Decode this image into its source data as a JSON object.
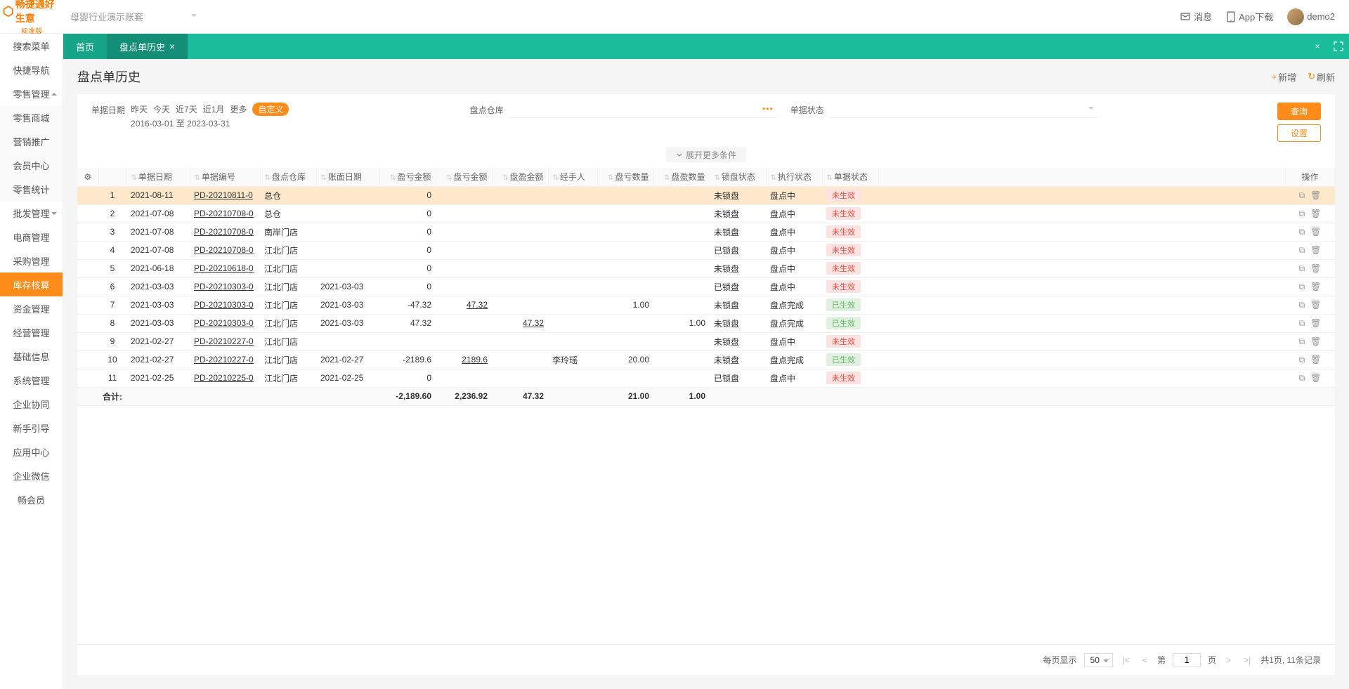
{
  "brand": {
    "name": "畅捷通好生意",
    "edition": "标准版"
  },
  "org": {
    "name": "母婴行业演示账套"
  },
  "topActions": {
    "msg": "消息",
    "download": "App下载",
    "user": "demo2"
  },
  "sidebar": {
    "search": "搜索菜单",
    "quick": "快捷导航",
    "groups": [
      {
        "label": "零售管理",
        "expanded": true,
        "children": [
          "零售商城",
          "营销推广",
          "会员中心",
          "零售统计"
        ]
      },
      {
        "label": "批发管理",
        "expanded": false
      },
      {
        "label": "电商管理"
      },
      {
        "label": "采购管理"
      },
      {
        "label": "库存核算",
        "active": true
      },
      {
        "label": "资金管理"
      },
      {
        "label": "经营管理"
      },
      {
        "label": "基础信息"
      },
      {
        "label": "系统管理"
      },
      {
        "label": "企业协同"
      },
      {
        "label": "新手引导"
      },
      {
        "label": "应用中心"
      },
      {
        "label": "企业微信"
      },
      {
        "label": "畅会员"
      }
    ]
  },
  "tabs": {
    "home": "首页",
    "active": "盘点单历史"
  },
  "page": {
    "title": "盘点单历史",
    "actions": {
      "add": "新增",
      "refresh": "刷新"
    }
  },
  "filters": {
    "dateLabel": "单据日期",
    "quick": [
      "昨天",
      "今天",
      "近7天",
      "近1月",
      "更多"
    ],
    "custom": "自定义",
    "range": "2016-03-01 至 2023-03-31",
    "warehouseLabel": "盘点仓库",
    "statusLabel": "单据状态",
    "searchBtn": "查询",
    "settingsBtn": "设置",
    "expand": "展开更多条件"
  },
  "table": {
    "columns": [
      "单据日期",
      "单据编号",
      "盘点仓库",
      "账面日期",
      "盈亏金额",
      "盘亏金额",
      "盘盈金额",
      "经手人",
      "盘亏数量",
      "盘盈数量",
      "锁盘状态",
      "执行状态",
      "单据状态"
    ],
    "opsHeader": "操作",
    "rows": [
      {
        "idx": 1,
        "date": "2021-08-11",
        "code": "PD-20210811-0",
        "wh": "总仓",
        "acc": "",
        "pl": "0",
        "loss": "",
        "gain": "",
        "handler": "",
        "lossQty": "",
        "gainQty": "",
        "lock": "未锁盘",
        "exec": "盘点中",
        "status": "未生效",
        "sv": "red"
      },
      {
        "idx": 2,
        "date": "2021-07-08",
        "code": "PD-20210708-0",
        "wh": "总仓",
        "acc": "",
        "pl": "0",
        "loss": "",
        "gain": "",
        "handler": "",
        "lossQty": "",
        "gainQty": "",
        "lock": "未锁盘",
        "exec": "盘点中",
        "status": "未生效",
        "sv": "red"
      },
      {
        "idx": 3,
        "date": "2021-07-08",
        "code": "PD-20210708-0",
        "wh": "南岸门店",
        "acc": "",
        "pl": "0",
        "loss": "",
        "gain": "",
        "handler": "",
        "lossQty": "",
        "gainQty": "",
        "lock": "未锁盘",
        "exec": "盘点中",
        "status": "未生效",
        "sv": "red"
      },
      {
        "idx": 4,
        "date": "2021-07-08",
        "code": "PD-20210708-0",
        "wh": "江北门店",
        "acc": "",
        "pl": "0",
        "loss": "",
        "gain": "",
        "handler": "",
        "lossQty": "",
        "gainQty": "",
        "lock": "已锁盘",
        "exec": "盘点中",
        "status": "未生效",
        "sv": "red"
      },
      {
        "idx": 5,
        "date": "2021-06-18",
        "code": "PD-20210618-0",
        "wh": "江北门店",
        "acc": "",
        "pl": "0",
        "loss": "",
        "gain": "",
        "handler": "",
        "lossQty": "",
        "gainQty": "",
        "lock": "未锁盘",
        "exec": "盘点中",
        "status": "未生效",
        "sv": "red"
      },
      {
        "idx": 6,
        "date": "2021-03-03",
        "code": "PD-20210303-0",
        "wh": "江北门店",
        "acc": "2021-03-03",
        "pl": "0",
        "loss": "",
        "gain": "",
        "handler": "",
        "lossQty": "",
        "gainQty": "",
        "lock": "已锁盘",
        "exec": "盘点中",
        "status": "未生效",
        "sv": "red"
      },
      {
        "idx": 7,
        "date": "2021-03-03",
        "code": "PD-20210303-0",
        "wh": "江北门店",
        "acc": "2021-03-03",
        "pl": "-47.32",
        "loss": "47.32",
        "gain": "",
        "handler": "",
        "lossQty": "1.00",
        "gainQty": "",
        "lock": "未锁盘",
        "exec": "盘点完成",
        "status": "已生效",
        "sv": "green"
      },
      {
        "idx": 8,
        "date": "2021-03-03",
        "code": "PD-20210303-0",
        "wh": "江北门店",
        "acc": "2021-03-03",
        "pl": "47.32",
        "loss": "",
        "gain": "47.32",
        "handler": "",
        "lossQty": "",
        "gainQty": "1.00",
        "lock": "未锁盘",
        "exec": "盘点完成",
        "status": "已生效",
        "sv": "green"
      },
      {
        "idx": 9,
        "date": "2021-02-27",
        "code": "PD-20210227-0",
        "wh": "江北门店",
        "acc": "",
        "pl": "",
        "loss": "",
        "gain": "",
        "handler": "",
        "lossQty": "",
        "gainQty": "",
        "lock": "未锁盘",
        "exec": "盘点中",
        "status": "未生效",
        "sv": "red"
      },
      {
        "idx": 10,
        "date": "2021-02-27",
        "code": "PD-20210227-0",
        "wh": "江北门店",
        "acc": "2021-02-27",
        "pl": "-2189.6",
        "loss": "2189.6",
        "gain": "",
        "handler": "李玲瑶",
        "lossQty": "20.00",
        "gainQty": "",
        "lock": "未锁盘",
        "exec": "盘点完成",
        "status": "已生效",
        "sv": "green"
      },
      {
        "idx": 11,
        "date": "2021-02-25",
        "code": "PD-20210225-0",
        "wh": "江北门店",
        "acc": "2021-02-25",
        "pl": "0",
        "loss": "",
        "gain": "",
        "handler": "",
        "lossQty": "",
        "gainQty": "",
        "lock": "已锁盘",
        "exec": "盘点中",
        "status": "未生效",
        "sv": "red"
      }
    ],
    "sum": {
      "label": "合计:",
      "pl": "-2,189.60",
      "loss": "2,236.92",
      "gain": "47.32",
      "lossQty": "21.00",
      "gainQty": "1.00"
    }
  },
  "pager": {
    "perPageLabel": "每页显示",
    "perPage": "50",
    "pageLabel1": "第",
    "page": "1",
    "pageLabel2": "页",
    "total": "共1页, 11条记录"
  }
}
